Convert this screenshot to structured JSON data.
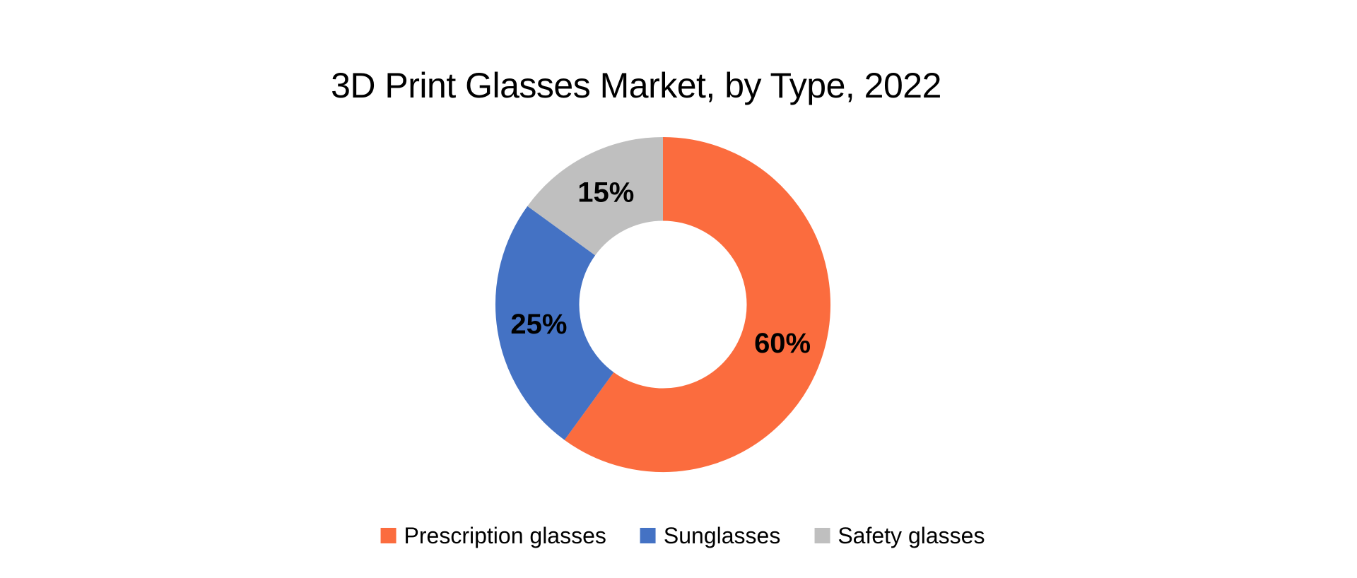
{
  "page": {
    "background": "#ffffff"
  },
  "chart_data": {
    "type": "pie",
    "subtype": "donut",
    "title": "3D Print Glasses Market, by Type, 2022",
    "categories": [
      "Prescription glasses",
      "Sunglasses",
      "Safety glasses"
    ],
    "values": [
      60,
      25,
      15
    ],
    "data_labels": [
      "60%",
      "25%",
      "15%"
    ],
    "colors": [
      "#FB6C3E",
      "#4472C4",
      "#BFBFBF"
    ],
    "label_color": "#000000",
    "start_angle_deg": 0,
    "direction": "clockwise",
    "inner_radius_ratio": 0.5,
    "legend_position": "bottom",
    "grid": "off"
  }
}
